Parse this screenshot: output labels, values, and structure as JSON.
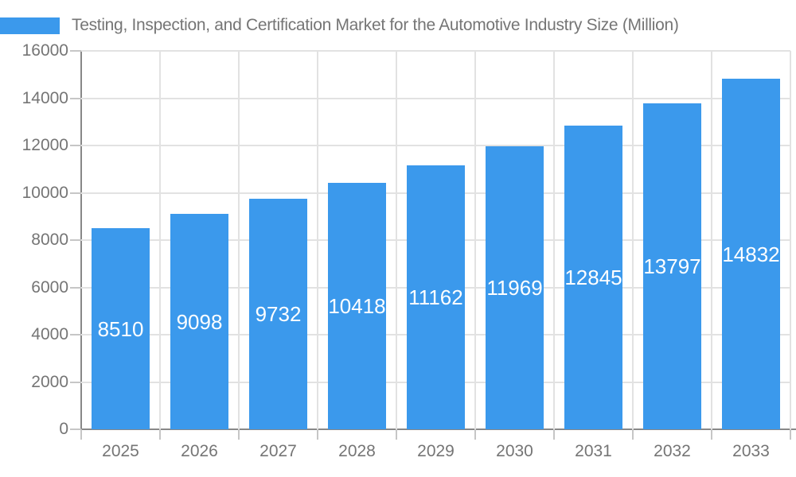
{
  "chart_data": {
    "type": "bar",
    "title": "Testing, Inspection, and Certification Market for the Automotive Industry Size (Million)",
    "categories": [
      "2025",
      "2026",
      "2027",
      "2028",
      "2029",
      "2030",
      "2031",
      "2032",
      "2033"
    ],
    "values": [
      8510,
      9098,
      9732,
      10418,
      11162,
      11969,
      12845,
      13797,
      14832
    ],
    "series": [
      {
        "name": "Testing, Inspection, and Certification Market for the Automotive Industry Size (Million)",
        "values": [
          8510,
          9098,
          9732,
          10418,
          11162,
          11969,
          12845,
          13797,
          14832
        ]
      }
    ],
    "xlabel": "",
    "ylabel": "",
    "ylim": [
      0,
      16000
    ],
    "yticks": [
      0,
      2000,
      4000,
      6000,
      8000,
      10000,
      12000,
      14000,
      16000
    ],
    "grid": true,
    "legend_position": "top-left",
    "value_labels_position": "inside-center",
    "colors": {
      "bar": "#3B99EC",
      "value_label": "#FFFFFF",
      "axis_line": "#888888",
      "grid_line": "#E2E2E2",
      "tick_mark": "#C6C6C6",
      "label_text": "#757575"
    }
  }
}
